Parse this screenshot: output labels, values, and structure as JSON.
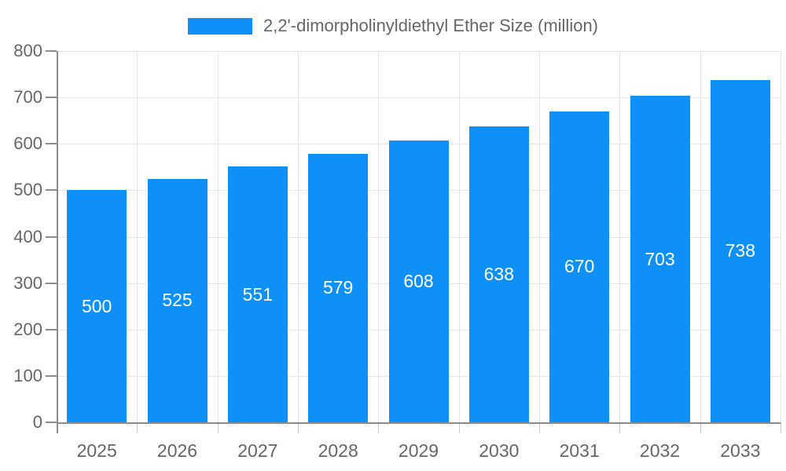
{
  "legend": {
    "label": "2,2'-dimorpholinyldiethyl Ether Size (million)",
    "swatch_color": "#0E90F8"
  },
  "chart_data": {
    "type": "bar",
    "title": "2,2'-dimorpholinyldiethyl Ether Size (million)",
    "series_name": "2,2'-dimorpholinyldiethyl Ether Size (million)",
    "categories": [
      "2025",
      "2026",
      "2027",
      "2028",
      "2029",
      "2030",
      "2031",
      "2032",
      "2033"
    ],
    "values": [
      500,
      525,
      551,
      579,
      608,
      638,
      670,
      703,
      738
    ],
    "xlabel": "",
    "ylabel": "",
    "ylim": [
      0,
      800
    ],
    "y_tick_step": 100,
    "y_tick_labels": [
      "0",
      "100",
      "200",
      "300",
      "400",
      "500",
      "600",
      "700",
      "800"
    ],
    "grid": true,
    "legend_position": "top-center",
    "bar_color": "#0E90F8",
    "value_label_color": "#FFFFFF",
    "axis_text_color": "#666666",
    "axis_line_color": "#8C8C8C",
    "gridline_color": "#E6E6E6"
  }
}
